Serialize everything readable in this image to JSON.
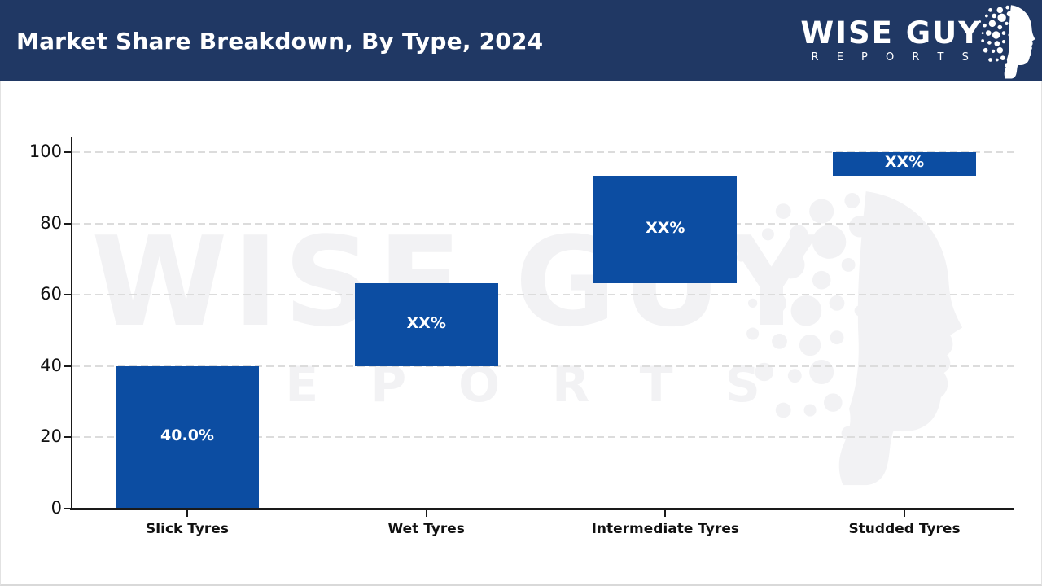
{
  "header": {
    "title": "Market Share Breakdown, By Type, 2024",
    "logo_line1": "WISE GUY",
    "logo_line2": "R E P O R T S"
  },
  "watermark": {
    "line1": "WISE GUY",
    "line2": "REPORTS"
  },
  "chart_data": {
    "type": "bar",
    "subtype": "waterfall",
    "title": "Market Share Breakdown, By Type, 2024",
    "categories": [
      "Slick Tyres",
      "Wet Tyres",
      "Intermediate Tyres",
      "Studded Tyres"
    ],
    "series": [
      {
        "name": "Market Share",
        "segments": [
          {
            "category": "Slick Tyres",
            "start": 0,
            "end": 40,
            "value": 40.0,
            "label": "40.0%"
          },
          {
            "category": "Wet Tyres",
            "start": 40,
            "end": 63.2,
            "value": 23.2,
            "label": "XX%"
          },
          {
            "category": "Intermediate Tyres",
            "start": 63.2,
            "end": 93.4,
            "value": 30.2,
            "label": "XX%"
          },
          {
            "category": "Studded Tyres",
            "start": 93.4,
            "end": 100,
            "value": 6.6,
            "label": "XX%"
          }
        ]
      }
    ],
    "xlabel": "",
    "ylabel": "",
    "yticks": [
      0,
      20,
      40,
      60,
      80,
      100
    ],
    "ylim": [
      0,
      105
    ],
    "grid": "horizontal-dashed",
    "legend": "none",
    "colors": {
      "bar": "#0C4DA2",
      "bar_label": "#FFFFFF",
      "grid": "#DCDCDC",
      "axis": "#1A1A1A",
      "header_bg": "#203864",
      "watermark": "#F2F2F4"
    }
  }
}
